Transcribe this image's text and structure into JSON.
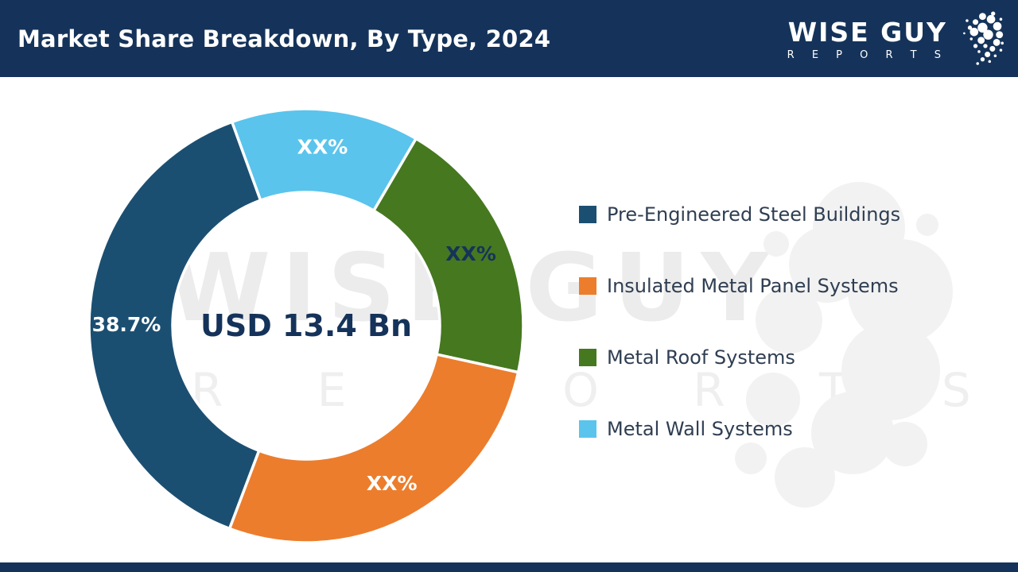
{
  "header": {
    "title": "Market Share Breakdown, By Type, 2024",
    "logo": {
      "line1": "WISE GUY",
      "line2": "R E P O R T S"
    }
  },
  "watermark": {
    "line1": "WISE GUY",
    "line2": "R E P O R T S"
  },
  "chart_data": {
    "type": "pie",
    "subtype": "donut",
    "title": "Market Share Breakdown, By Type, 2024",
    "center_label": "USD 13.4 Bn",
    "center_label_color": "#15335a",
    "rotation_deg": 340,
    "legend_position": "right",
    "segments": [
      {
        "label": "Pre-Engineered Steel Buildings",
        "value_pct": 38.7,
        "display": "38.7%",
        "color": "#1b4f72",
        "label_color": "#ffffff"
      },
      {
        "label": "Insulated Metal Panel Systems",
        "value_pct": 27.3,
        "display": "XX%",
        "color": "#ec7d2d",
        "label_color": "#ffffff"
      },
      {
        "label": "Metal Roof Systems",
        "value_pct": 20.0,
        "display": "XX%",
        "color": "#467820",
        "label_color": "#15335a"
      },
      {
        "label": "Metal Wall Systems",
        "value_pct": 14.0,
        "display": "XX%",
        "color": "#5ac4ec",
        "label_color": "#ffffff"
      }
    ]
  },
  "colors": {
    "header_bg": "#15335a",
    "footer_bg": "#15335a",
    "legend_text": "#2f3e52"
  }
}
